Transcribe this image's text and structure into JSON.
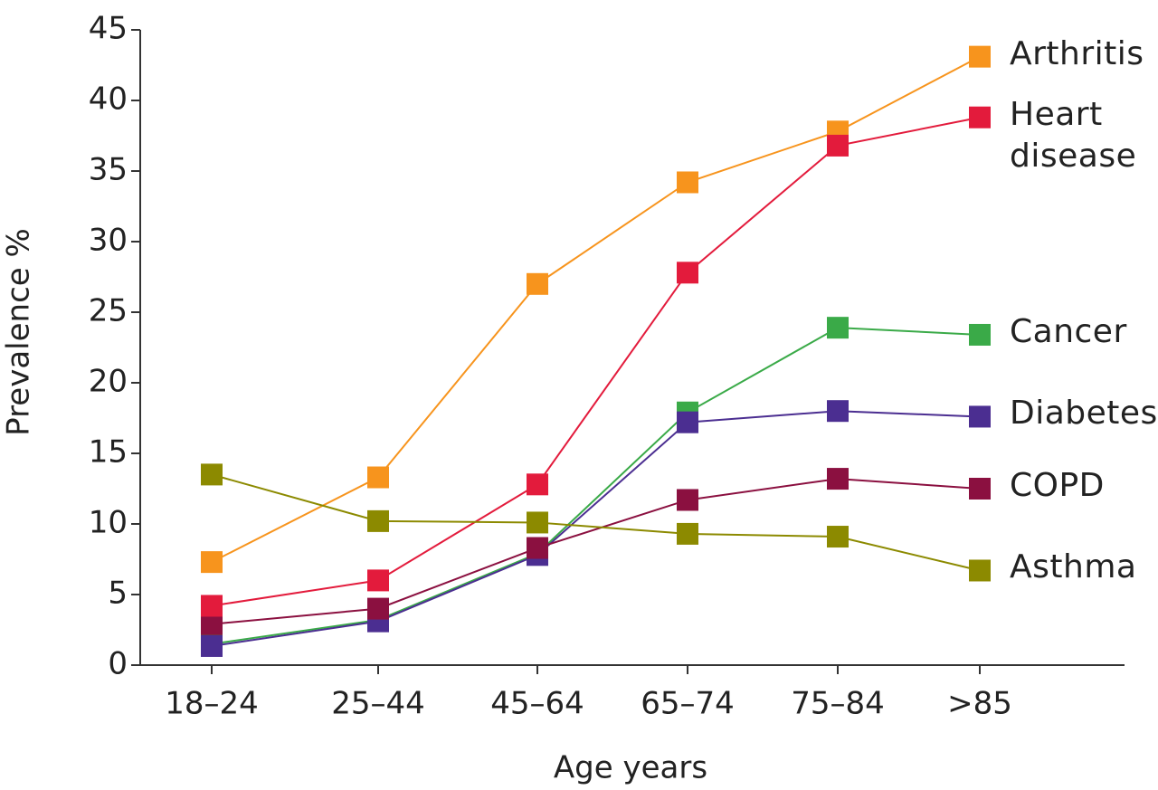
{
  "chart_data": {
    "type": "line",
    "xlabel": "Age years",
    "ylabel": "Prevalence %",
    "categories": [
      "18–24",
      "25–44",
      "45–64",
      "65–74",
      "75–84",
      ">85"
    ],
    "ylim": [
      0,
      45
    ],
    "yticks": [
      0,
      5,
      10,
      15,
      20,
      25,
      30,
      35,
      40,
      45
    ],
    "series": [
      {
        "name": "Arthritis",
        "color": "#f7941d",
        "values": [
          7.3,
          13.3,
          27.0,
          34.2,
          37.8,
          43.1
        ]
      },
      {
        "name": "Heart disease",
        "color": "#e31b3c",
        "values": [
          4.2,
          6.0,
          12.8,
          27.8,
          36.8,
          38.8
        ]
      },
      {
        "name": "Cancer",
        "color": "#3aaa48",
        "values": [
          1.5,
          3.2,
          7.9,
          17.9,
          23.9,
          23.4
        ]
      },
      {
        "name": "Diabetes",
        "color": "#4b2e91",
        "values": [
          1.35,
          3.1,
          7.8,
          17.2,
          18.0,
          17.6
        ]
      },
      {
        "name": "COPD",
        "color": "#8b1040",
        "values": [
          2.9,
          4.0,
          8.3,
          11.7,
          13.2,
          12.5
        ]
      },
      {
        "name": "Asthma",
        "color": "#8c8a00",
        "values": [
          13.5,
          10.2,
          10.1,
          9.3,
          9.1,
          6.7
        ]
      }
    ]
  }
}
